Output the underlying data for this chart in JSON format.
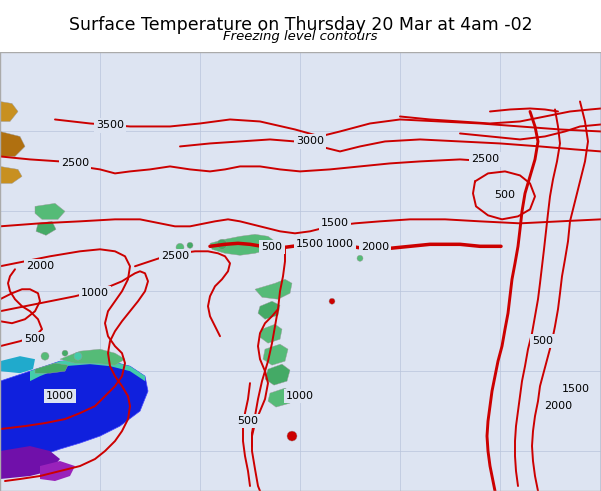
{
  "title": "Surface Temperature on Thursday 20 Mar at 4am -02",
  "subtitle": "Freezing level contours",
  "title_fontsize": 12.5,
  "subtitle_fontsize": 9.5,
  "bg_ocean": "#dde4f2",
  "grid_color": "#b8c4dc",
  "contour_color": "#cc0000",
  "contour_lw": 1.4,
  "label_fs": 8,
  "fig_w": 6.01,
  "fig_h": 4.91,
  "dpi": 100,
  "land_green": "#55bb77",
  "land_green2": "#44aa66",
  "land_teal": "#44ccaa",
  "land_orange": "#c89020",
  "land_darkorange": "#b07010",
  "land_blue": "#1020dd",
  "land_purple": "#7010aa",
  "land_cyan": "#20aacc"
}
